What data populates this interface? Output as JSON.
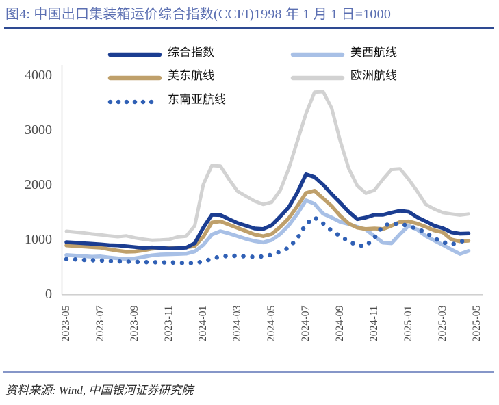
{
  "figure": {
    "title": "图4: 中国出口集装箱运价综合指数(CCFI)1998 年 1 月 1 日=1000",
    "source_text": "资料来源: Wind, 中国银河证券研究院"
  },
  "styles": {
    "title_color": "#5b6fb2",
    "title_rule_color": "#2e4a92",
    "source_rule_color": "#8696c8",
    "axis_line_color": "#c9c9c9",
    "tick_label_color": "#4d4d4d",
    "legend_text_color": "#141414",
    "source_text_color": "#303030"
  },
  "chart_data": {
    "type": "line",
    "title": "中国出口集装箱运价综合指数(CCFI) 1998年1月1日=1000",
    "x_start": "2023-05",
    "x_end": "2025-05",
    "points_per_month": 2,
    "x_tick_labels": [
      "2023-05",
      "2023-07",
      "2023-09",
      "2023-11",
      "2024-01",
      "2024-03",
      "2024-05",
      "2024-07",
      "2024-09",
      "2024-11",
      "2025-01",
      "2025-03",
      "2025-05"
    ],
    "y_ticks": [
      0,
      1000,
      2000,
      3000,
      4000
    ],
    "y_tick_labels": [
      "0",
      "1000",
      "2000",
      "3000",
      "4000"
    ],
    "ylim": [
      0,
      4000
    ],
    "grid": false,
    "legend_position": "top",
    "draw_order": [
      3,
      1,
      2,
      4,
      0
    ],
    "series": [
      {
        "id": "composite",
        "name": "综合指数",
        "color": "#1b3d91",
        "style": "solid",
        "width": 5.5,
        "values": [
          950,
          940,
          930,
          920,
          910,
          895,
          890,
          875,
          860,
          845,
          855,
          845,
          835,
          840,
          850,
          930,
          1215,
          1450,
          1445,
          1370,
          1300,
          1250,
          1200,
          1190,
          1260,
          1420,
          1590,
          1860,
          2190,
          2140,
          2000,
          1830,
          1670,
          1505,
          1370,
          1400,
          1450,
          1450,
          1490,
          1525,
          1505,
          1405,
          1330,
          1250,
          1205,
          1130,
          1105,
          1110
        ]
      },
      {
        "id": "us-west",
        "name": "美西航线",
        "color": "#a8c0e6",
        "style": "solid",
        "width": 5.5,
        "values": [
          715,
          705,
          695,
          685,
          690,
          670,
          655,
          645,
          655,
          680,
          710,
          725,
          730,
          735,
          740,
          780,
          900,
          1090,
          1150,
          1110,
          1060,
          1010,
          970,
          945,
          990,
          1100,
          1260,
          1470,
          1715,
          1650,
          1470,
          1400,
          1320,
          1280,
          1230,
          1180,
          1060,
          940,
          930,
          1100,
          1250,
          1180,
          1065,
          980,
          900,
          815,
          735,
          790
        ]
      },
      {
        "id": "us-east",
        "name": "美东航线",
        "color": "#bfa06b",
        "style": "solid",
        "width": 5.5,
        "values": [
          890,
          880,
          870,
          860,
          850,
          820,
          795,
          775,
          780,
          800,
          830,
          845,
          850,
          850,
          855,
          880,
          1050,
          1310,
          1330,
          1270,
          1210,
          1150,
          1090,
          1060,
          1100,
          1230,
          1390,
          1610,
          1850,
          1890,
          1750,
          1610,
          1430,
          1290,
          1215,
          1190,
          1200,
          1190,
          1250,
          1320,
          1330,
          1290,
          1230,
          1165,
          1130,
          1000,
          965,
          975
        ]
      },
      {
        "id": "europe",
        "name": "欧洲航线",
        "color": "#d2d2d2",
        "style": "solid",
        "width": 5,
        "values": [
          1150,
          1135,
          1120,
          1100,
          1085,
          1065,
          1050,
          1065,
          1030,
          1005,
          985,
          990,
          1000,
          1045,
          1060,
          1250,
          2005,
          2350,
          2340,
          2100,
          1880,
          1790,
          1700,
          1640,
          1680,
          1900,
          2300,
          2800,
          3300,
          3690,
          3700,
          3400,
          2800,
          2295,
          1980,
          1845,
          1900,
          2100,
          2280,
          2290,
          2100,
          1880,
          1640,
          1555,
          1490,
          1465,
          1445,
          1465
        ]
      },
      {
        "id": "se-asia",
        "name": "东南亚航线",
        "color": "#3060b5",
        "style": "dotted",
        "width": 6.5,
        "values": [
          640,
          635,
          625,
          620,
          615,
          605,
          600,
          595,
          590,
          585,
          585,
          580,
          580,
          575,
          565,
          570,
          595,
          645,
          690,
          700,
          700,
          690,
          680,
          690,
          720,
          775,
          850,
          1020,
          1280,
          1400,
          1290,
          1160,
          1060,
          965,
          890,
          880,
          1030,
          1250,
          1290,
          1280,
          1250,
          1190,
          1130,
          1020,
          950,
          905,
          955,
          1000
        ]
      }
    ]
  }
}
